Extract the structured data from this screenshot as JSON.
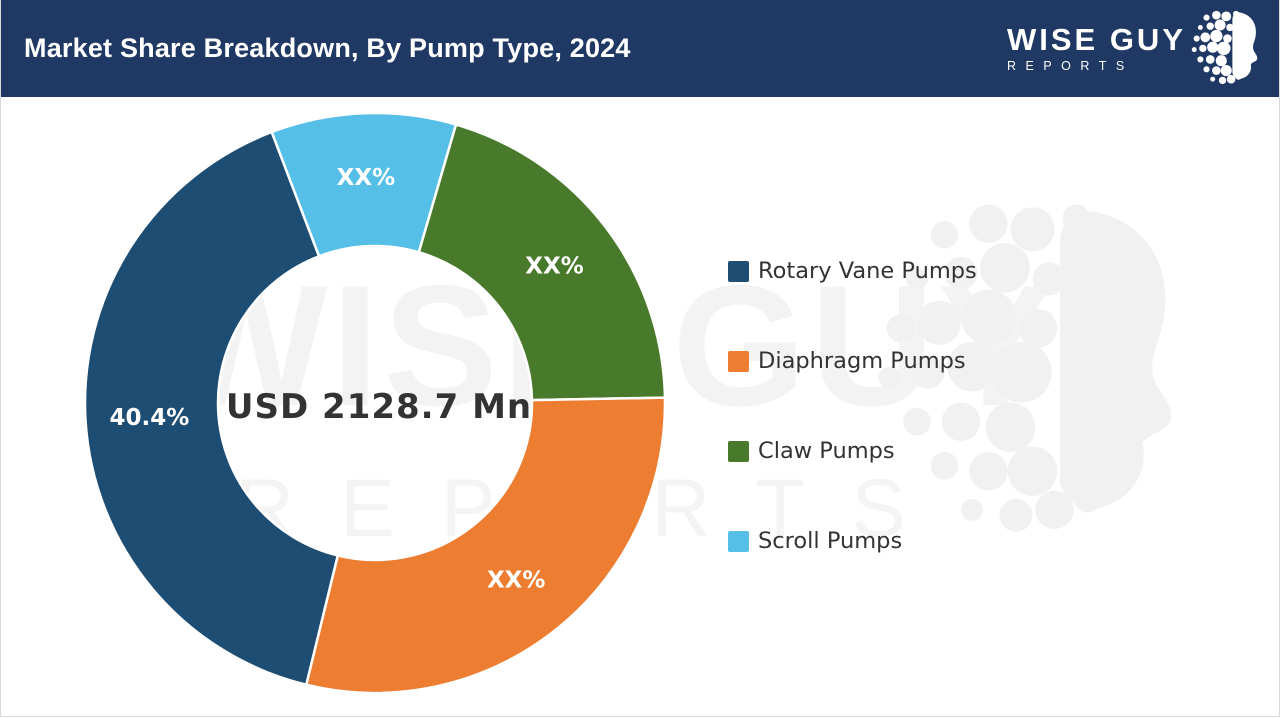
{
  "header": {
    "title": "Market Share Breakdown, By Pump Type, 2024",
    "logo": {
      "line1": "WISE GUY",
      "line2": "REPORTS"
    }
  },
  "watermark": {
    "line1": "WISE GUY",
    "line2": "REPORTS"
  },
  "chart_data": {
    "type": "pie",
    "subtype": "donut",
    "title": "Market Share Breakdown, By Pump Type, 2024",
    "center_label": "USD 2128.7 Mn",
    "legend_position": "right",
    "start_angle_deg": 193.7,
    "units": "percent of market share",
    "segments": [
      {
        "label": "Rotary Vane Pumps",
        "value_pct": 40.4,
        "display_label": "40.4%",
        "color": "#1E4D73",
        "draw_index": 0
      },
      {
        "label": "Diaphragm Pumps",
        "value_pct": 29.1,
        "display_label": "XX%",
        "color": "#ED7D31",
        "draw_index": 3
      },
      {
        "label": "Claw Pumps",
        "value_pct": 20.2,
        "display_label": "XX%",
        "color": "#497A2C",
        "draw_index": 2
      },
      {
        "label": "Scroll Pumps",
        "value_pct": 10.3,
        "display_label": "XX%",
        "color": "#55BFE8",
        "draw_index": 1
      }
    ]
  },
  "colors": {
    "header_bg": "#1F3864",
    "title_text": "#ffffff",
    "center_text": "#333333",
    "legend_text": "#333333",
    "watermark": "#f3f3f3",
    "segment_divider": "#ffffff"
  }
}
